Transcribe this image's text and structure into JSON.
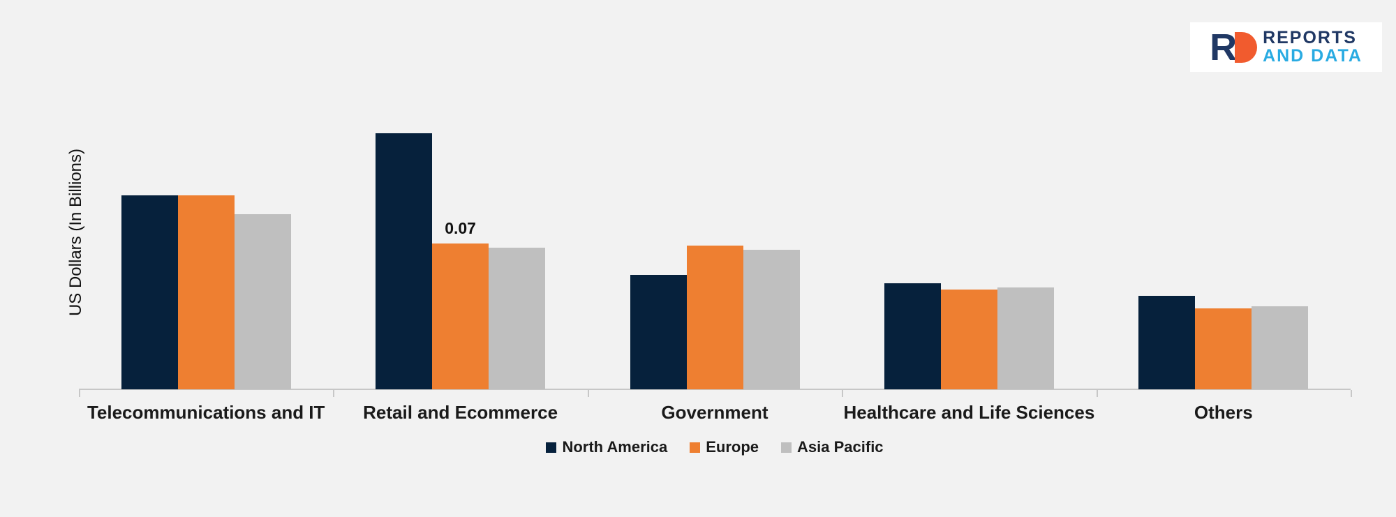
{
  "logo": {
    "mark_r": "R",
    "line1": "REPORTS",
    "line2": "AND DATA"
  },
  "chart_data": {
    "type": "bar",
    "title": "",
    "xlabel": "",
    "ylabel": "US Dollars (In Billions)",
    "categories": [
      "Telecommunications and IT",
      "Retail and Ecommerce",
      "Government",
      "Healthcare and Life Sciences",
      "Others"
    ],
    "series": [
      {
        "name": "North America",
        "color": "#06213C",
        "values": [
          0.093,
          0.123,
          0.055,
          0.051,
          0.045
        ]
      },
      {
        "name": "Europe",
        "color": "#EE7F31",
        "values": [
          0.093,
          0.07,
          0.069,
          0.048,
          0.039
        ]
      },
      {
        "name": "Asia Pacific",
        "color": "#BFBFBF",
        "values": [
          0.084,
          0.068,
          0.067,
          0.049,
          0.04
        ]
      }
    ],
    "data_labels": [
      {
        "series": "Europe",
        "category": "Retail and Ecommerce",
        "text": "0.07"
      }
    ],
    "ylim": [
      0,
      0.14
    ],
    "grid": false,
    "legend_position": "bottom",
    "colors": {
      "background": "#F2F2F2",
      "axis": "#C7C7C7",
      "text": "#1A1A1A",
      "logo_navy": "#203864",
      "logo_orange": "#F15B2E",
      "logo_blue": "#29ABE2"
    }
  }
}
